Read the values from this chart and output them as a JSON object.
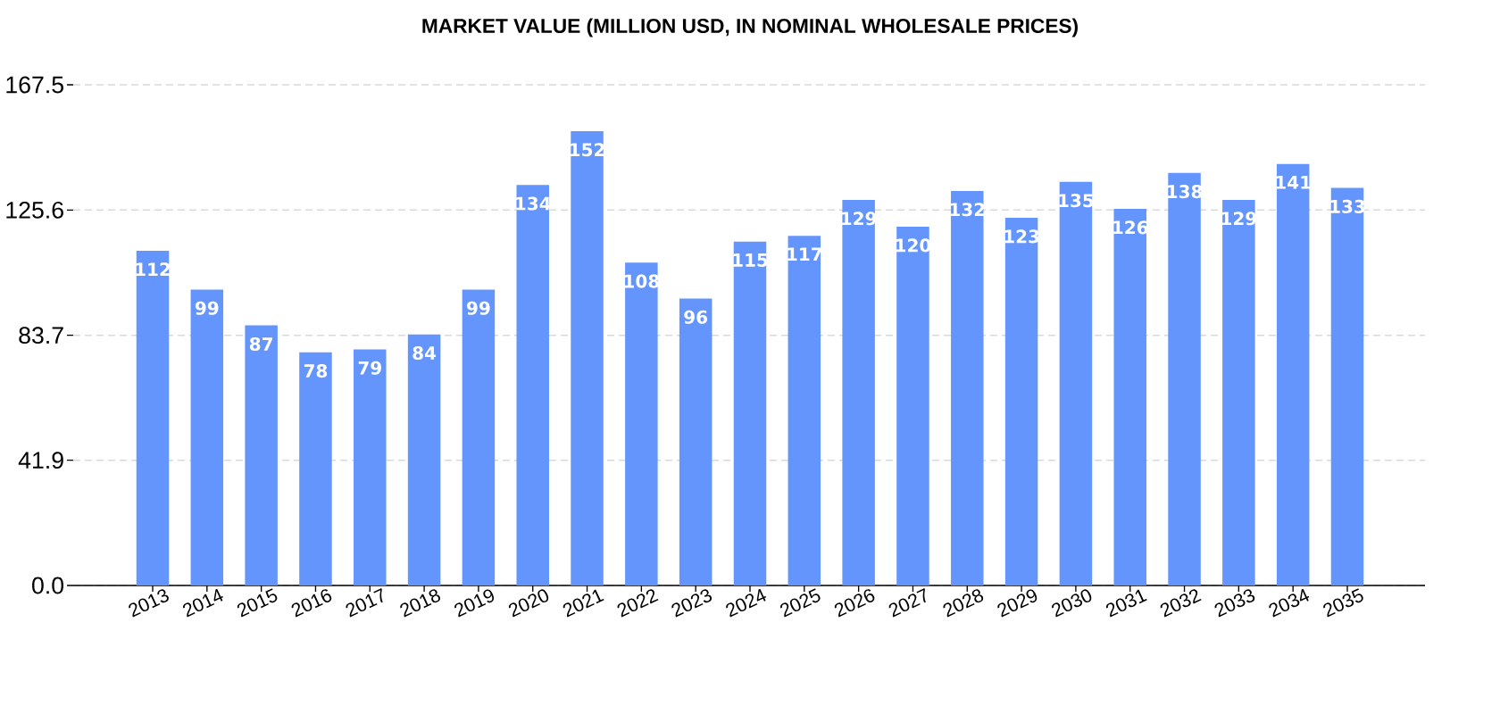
{
  "chart_data": {
    "type": "bar",
    "title": "MARKET VALUE (MILLION USD, IN NOMINAL WHOLESALE PRICES)",
    "categories": [
      "2013",
      "2014",
      "2015",
      "2016",
      "2017",
      "2018",
      "2019",
      "2020",
      "2021",
      "2022",
      "2023",
      "2024",
      "2025",
      "2026",
      "2027",
      "2028",
      "2029",
      "2030",
      "2031",
      "2032",
      "2033",
      "2034",
      "2035"
    ],
    "values": [
      112,
      99,
      87,
      78,
      79,
      84,
      99,
      134,
      152,
      108,
      96,
      115,
      117,
      129,
      120,
      132,
      123,
      135,
      126,
      138,
      129,
      141,
      133
    ],
    "color": "#6495fd",
    "ylim": [
      0,
      167.5
    ],
    "yticks": [
      {
        "value": 0,
        "label": "0.0"
      },
      41.9,
      83.7,
      125.6,
      167.5
    ],
    "grid": "y",
    "data_labels": true
  }
}
